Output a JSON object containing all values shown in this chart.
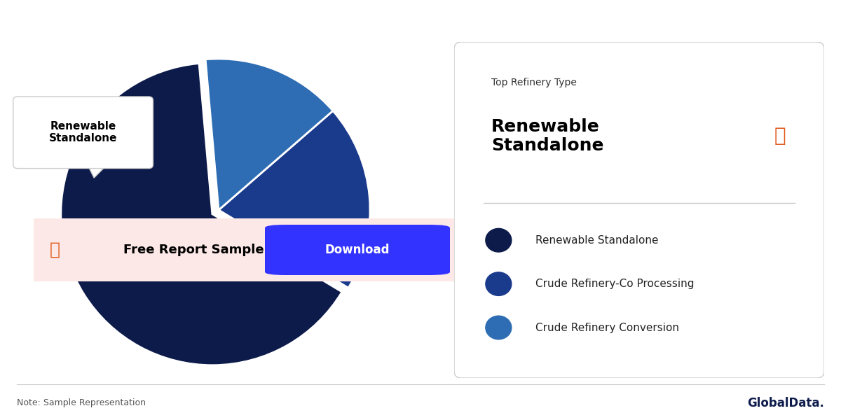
{
  "pie_slices": [
    0.65,
    0.2,
    0.15
  ],
  "pie_colors": [
    "#0d1b4b",
    "#1a3a8c",
    "#2e6db4"
  ],
  "pie_labels": [
    "Renewable Standalone",
    "Crude Refinery-Co Processing",
    "Crude Refinery Conversion"
  ],
  "pie_explode": [
    0.05,
    0.0,
    0.0
  ],
  "pie_startangle": 95,
  "legend_title_small": "Top Refinery Type",
  "legend_title_large": "Renewable\nStandalone",
  "legend_items": [
    "Renewable Standalone",
    "Crude Refinery-Co Processing",
    "Crude Refinery Conversion"
  ],
  "legend_colors": [
    "#0d1b4b",
    "#1a3a8c",
    "#2e6db4"
  ],
  "callout_label": "Renewable\nStandalone",
  "banner_text": "Free Report Sample",
  "banner_bg": "#fce8e6",
  "download_text": "Download",
  "download_bg": "#3333ff",
  "note_text": "Note: Sample Representation",
  "globaldata_text": "GlobalData.",
  "lock_color": "#e05c20",
  "bg_color": "#ffffff",
  "border_color": "#cccccc"
}
